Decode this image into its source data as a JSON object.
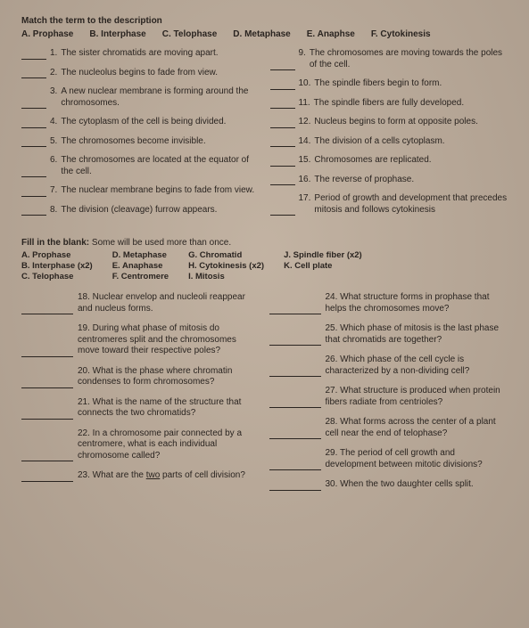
{
  "match": {
    "title": "Match the term to the description",
    "options": [
      {
        "key": "A",
        "label": "Prophase"
      },
      {
        "key": "B",
        "label": "Interphase"
      },
      {
        "key": "C",
        "label": "Telophase"
      },
      {
        "key": "D",
        "label": "Metaphase"
      },
      {
        "key": "E",
        "label": "Anaphse"
      },
      {
        "key": "F",
        "label": "Cytokinesis"
      }
    ],
    "left": [
      {
        "n": "1.",
        "t": "The sister chromatids are moving apart."
      },
      {
        "n": "2.",
        "t": "The nucleolus begins to fade from view."
      },
      {
        "n": "3.",
        "t": "A new nuclear membrane is forming around the chromosomes."
      },
      {
        "n": "4.",
        "t": "The cytoplasm of the cell is being divided."
      },
      {
        "n": "5.",
        "t": "The chromosomes become invisible."
      },
      {
        "n": "6.",
        "t": "The chromosomes are located at the equator of the cell."
      },
      {
        "n": "7.",
        "t": "The nuclear membrane begins to fade from view."
      },
      {
        "n": "8.",
        "t": "The division (cleavage) furrow appears."
      }
    ],
    "right": [
      {
        "n": "9.",
        "t": "The chromosomes are moving towards the poles of the cell."
      },
      {
        "n": "10.",
        "t": "The spindle fibers begin to form."
      },
      {
        "n": "11.",
        "t": "The spindle fibers are fully developed."
      },
      {
        "n": "12.",
        "t": "Nucleus begins to form at opposite poles."
      },
      {
        "n": "14.",
        "t": "The division of a cells cytoplasm."
      },
      {
        "n": "15.",
        "t": "Chromosomes are replicated."
      },
      {
        "n": "16.",
        "t": "The reverse of prophase."
      },
      {
        "n": "17.",
        "t": "Period of growth and development that precedes mitosis and follows cytokinesis"
      }
    ]
  },
  "fill": {
    "title": "Fill in the blank: ",
    "subtitle": "Some will be used more than once.",
    "opts": [
      [
        "A. Prophase",
        "B. Interphase (x2)",
        "C. Telophase"
      ],
      [
        "D. Metaphase",
        "E. Anaphase",
        "F. Centromere"
      ],
      [
        "G. Chromatid",
        "H. Cytokinesis (x2)",
        "I. Mitosis"
      ],
      [
        "J. Spindle fiber (x2)",
        "K. Cell plate"
      ]
    ],
    "left": [
      {
        "n": "18.",
        "t": "Nuclear envelop and nucleoli reappear and nucleus forms."
      },
      {
        "n": "19.",
        "t": "During what phase of mitosis do centromeres split and the chromosomes move toward their respective poles?"
      },
      {
        "n": "20.",
        "t": "What is the phase where chromatin condenses to form chromosomes?"
      },
      {
        "n": "21.",
        "t": "What is the name of the structure that connects the two chromatids?"
      },
      {
        "n": "22.",
        "t": "In a chromosome pair connected by a centromere, what is each individual chromosome called?"
      },
      {
        "n": "23.",
        "t": "What are the two parts of cell division?",
        "u": "two"
      }
    ],
    "right": [
      {
        "n": "24.",
        "t": "What structure forms in prophase that helps the chromosomes move?"
      },
      {
        "n": "25.",
        "t": "Which phase of mitosis is the last phase that chromatids are together?"
      },
      {
        "n": "26.",
        "t": "Which phase of the cell cycle is characterized by a non-dividing cell?"
      },
      {
        "n": "27.",
        "t": "What structure is produced when protein fibers radiate from centrioles?"
      },
      {
        "n": "28.",
        "t": "What forms across the center of a plant cell near the end of telophase?"
      },
      {
        "n": "29.",
        "t": "The period of cell growth and development between mitotic divisions?"
      },
      {
        "n": "30.",
        "t": "When the two daughter cells split."
      }
    ]
  }
}
